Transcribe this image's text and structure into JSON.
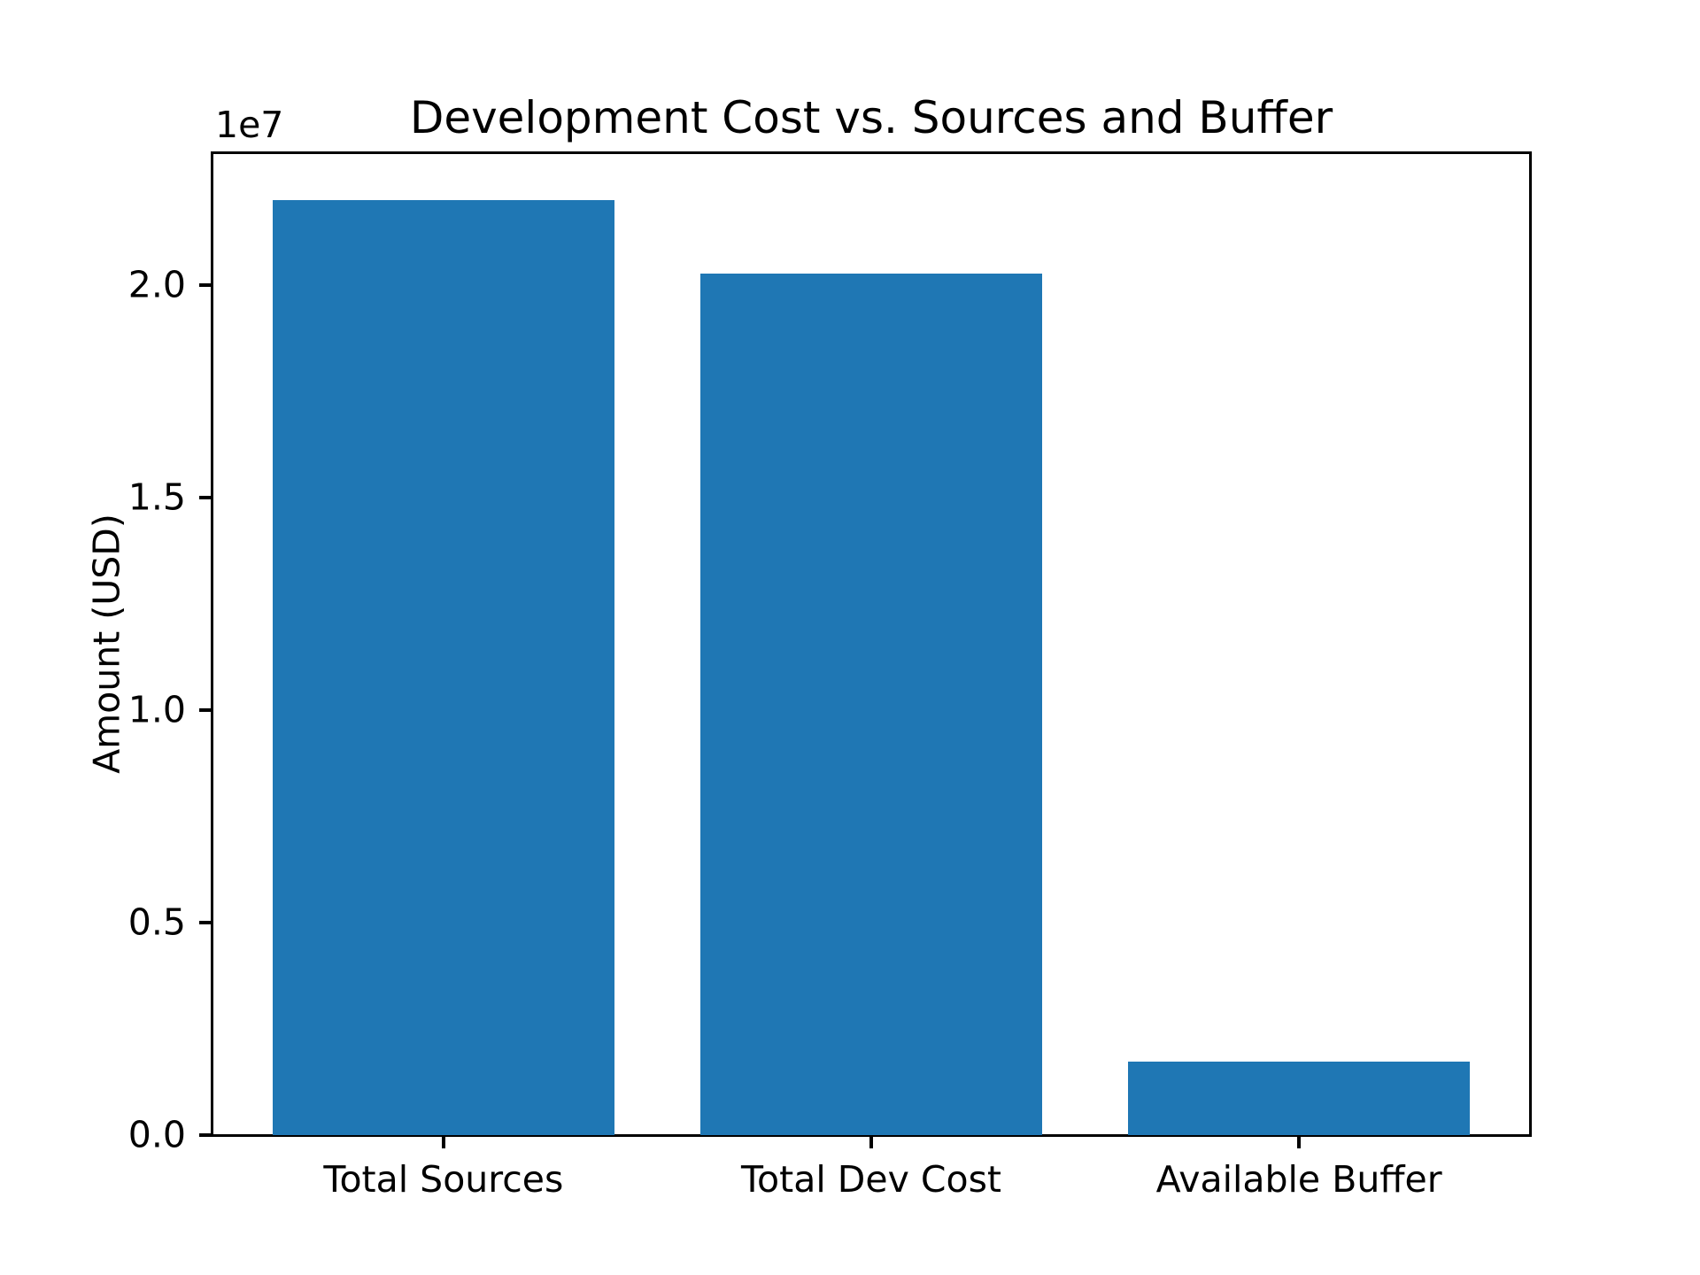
{
  "figure": {
    "background": "#ffffff",
    "text_color": "#000000",
    "spine_color": "#000000"
  },
  "chart_data": {
    "type": "bar",
    "title": "Development Cost vs. Sources and Buffer",
    "categories": [
      "Total Sources",
      "Total Dev Cost",
      "Available Buffer"
    ],
    "values": [
      22000000,
      20270000,
      1730000
    ],
    "xlabel": "",
    "ylabel": "Amount (USD)",
    "y_offset_label": "1e7",
    "yticks": {
      "values": [
        0,
        5000000,
        10000000,
        15000000,
        20000000
      ],
      "labels": [
        "0.0",
        "0.5",
        "1.0",
        "1.5",
        "2.0"
      ]
    },
    "ylim": [
      0,
      23100000
    ],
    "xlim": [
      -0.54,
      2.54
    ],
    "bar_width": 0.8,
    "bar_color": "#1f77b4",
    "grid": false,
    "legend": "none"
  }
}
